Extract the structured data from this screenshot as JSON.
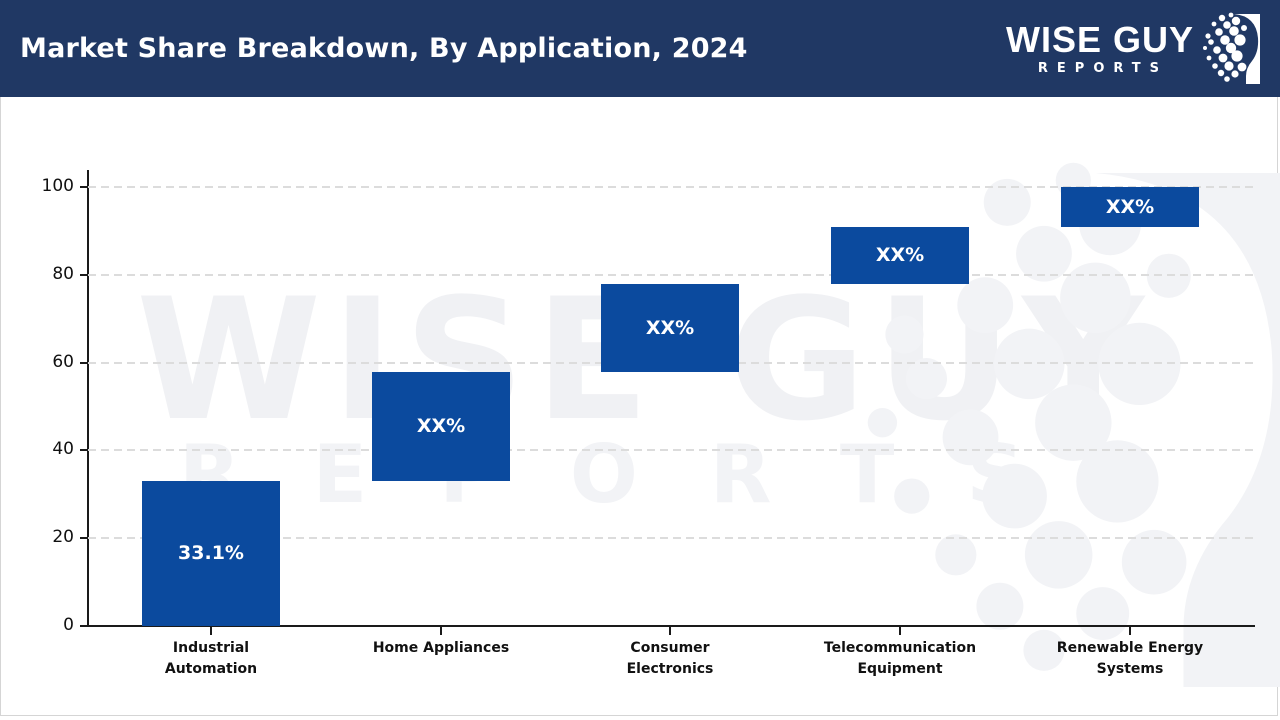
{
  "header": {
    "title": "Market Share Breakdown, By Application, 2024",
    "bg_color": "#203864",
    "logo": {
      "line1": "WISE GUY",
      "line2": "REPORTS"
    }
  },
  "watermark": {
    "line1": "WISE GUY",
    "line2": "REPORTS"
  },
  "chart_data": {
    "type": "bar",
    "subtype": "waterfall",
    "title": "Market Share Breakdown, By Application, 2024",
    "categories": [
      [
        "Industrial",
        "Automation"
      ],
      [
        "Home Appliances"
      ],
      [
        "Consumer",
        "Electronics"
      ],
      [
        "Telecommunication",
        "Equipment"
      ],
      [
        "Renewable Energy",
        "Systems"
      ]
    ],
    "segments": [
      {
        "start": 0,
        "end": 33.1,
        "label": "33.1%"
      },
      {
        "start": 33.1,
        "end": 57.9,
        "label": "XX%"
      },
      {
        "start": 57.9,
        "end": 77.9,
        "label": "XX%"
      },
      {
        "start": 77.9,
        "end": 90.9,
        "label": "XX%"
      },
      {
        "start": 90.9,
        "end": 100,
        "label": "XX%"
      }
    ],
    "yticks": [
      0,
      20,
      40,
      60,
      80,
      100
    ],
    "ylim": [
      0,
      100
    ],
    "xlabel": "",
    "ylabel": "",
    "grid": "dashed-horizontal",
    "legend": "none",
    "bar_color": "#0b4a9e",
    "value_label_color": "#ffffff",
    "axis_color": "#1a1a1a",
    "grid_color": "#dcdcdc"
  }
}
